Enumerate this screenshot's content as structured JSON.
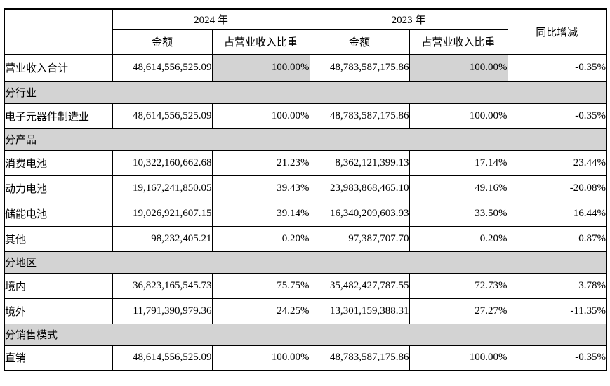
{
  "table": {
    "header": {
      "year_2024": "2024 年",
      "year_2023": "2023 年",
      "amount_2024": "金额",
      "ratio_2024": "占营业收入比重",
      "amount_2023": "金额",
      "ratio_2023": "占营业收入比重",
      "yoy": "同比增减"
    },
    "colors": {
      "section_row_bg": "#d3d3d3",
      "shaded_cell_bg": "#d3d3d3",
      "border": "#000000"
    },
    "rows": [
      {
        "type": "data",
        "label": "营业收入合计",
        "amount_2024": "48,614,556,525.09",
        "ratio_2024": "100.00%",
        "amount_2023": "48,783,587,175.86",
        "ratio_2023": "100.00%",
        "yoy": "-0.35%",
        "ratio_cells_shaded": true
      },
      {
        "type": "section",
        "label": "分行业"
      },
      {
        "type": "data",
        "label": "电子元器件制造业",
        "amount_2024": "48,614,556,525.09",
        "ratio_2024": "100.00%",
        "amount_2023": "48,783,587,175.86",
        "ratio_2023": "100.00%",
        "yoy": "-0.35%"
      },
      {
        "type": "section",
        "label": "分产品"
      },
      {
        "type": "data",
        "label": "消费电池",
        "amount_2024": "10,322,160,662.68",
        "ratio_2024": "21.23%",
        "amount_2023": "8,362,121,399.13",
        "ratio_2023": "17.14%",
        "yoy": "23.44%"
      },
      {
        "type": "data",
        "label": "动力电池",
        "amount_2024": "19,167,241,850.05",
        "ratio_2024": "39.43%",
        "amount_2023": "23,983,868,465.10",
        "ratio_2023": "49.16%",
        "yoy": "-20.08%"
      },
      {
        "type": "data",
        "label": "储能电池",
        "amount_2024": "19,026,921,607.15",
        "ratio_2024": "39.14%",
        "amount_2023": "16,340,209,603.93",
        "ratio_2023": "33.50%",
        "yoy": "16.44%"
      },
      {
        "type": "data",
        "label": "其他",
        "amount_2024": "98,232,405.21",
        "ratio_2024": "0.20%",
        "amount_2023": "97,387,707.70",
        "ratio_2023": "0.20%",
        "yoy": "0.87%"
      },
      {
        "type": "section",
        "label": "分地区"
      },
      {
        "type": "data",
        "label": "境内",
        "amount_2024": "36,823,165,545.73",
        "ratio_2024": "75.75%",
        "amount_2023": "35,482,427,787.55",
        "ratio_2023": "72.73%",
        "yoy": "3.78%"
      },
      {
        "type": "data",
        "label": "境外",
        "amount_2024": "11,791,390,979.36",
        "ratio_2024": "24.25%",
        "amount_2023": "13,301,159,388.31",
        "ratio_2023": "27.27%",
        "yoy": "-11.35%"
      },
      {
        "type": "section",
        "label": "分销售模式"
      },
      {
        "type": "data",
        "label": "直销",
        "amount_2024": "48,614,556,525.09",
        "ratio_2024": "100.00%",
        "amount_2023": "48,783,587,175.86",
        "ratio_2023": "100.00%",
        "yoy": "-0.35%"
      }
    ]
  }
}
